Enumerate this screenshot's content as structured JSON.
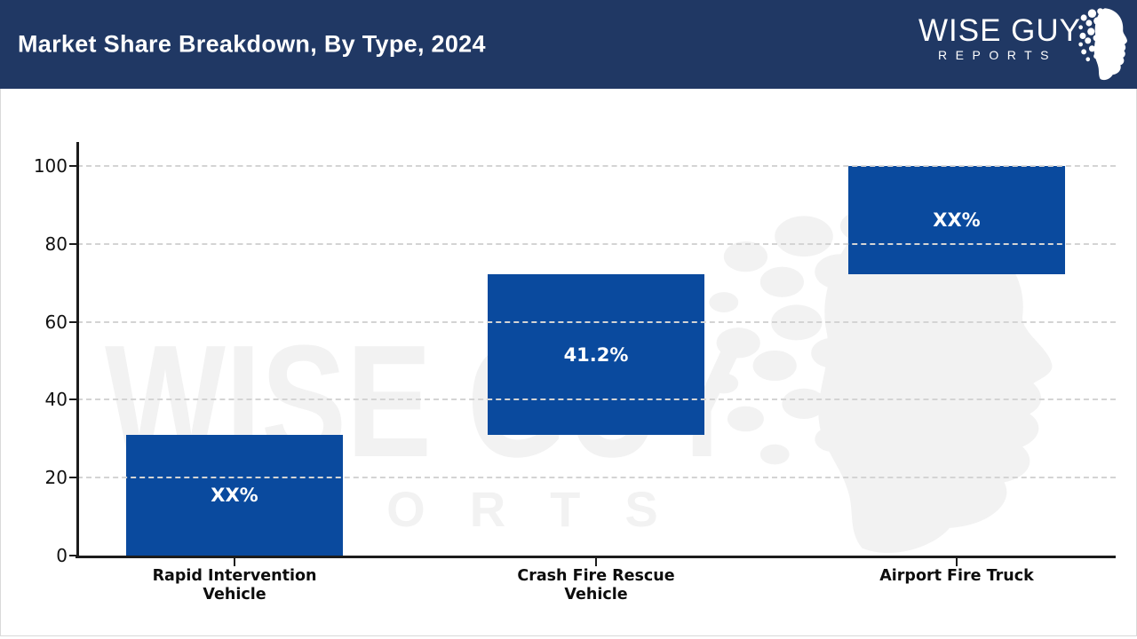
{
  "header": {
    "title": "Market Share Breakdown, By Type, 2024",
    "logo": {
      "line1": "WISE GUY",
      "line2": "REPORTS"
    }
  },
  "watermark": {
    "line1": "WISE GUY",
    "line2": "REPORTS"
  },
  "colors": {
    "header_bg": "#203864",
    "bar": "#0a4a9e",
    "bar_label": "#ffffff",
    "grid": "#d4d4d4",
    "axis": "#1c1c1c",
    "tick_text": "#111111",
    "watermark": "#f2f2f2"
  },
  "chart_data": {
    "type": "bar",
    "subtype": "floating-waterfall-segments",
    "title": "Market Share Breakdown, By Type, 2024",
    "categories": [
      "Rapid Intervention\nVehicle",
      "Crash Fire Rescue\nVehicle",
      "Airport Fire Truck"
    ],
    "segments": [
      {
        "category": "Rapid Intervention Vehicle",
        "start": 0,
        "end": 30.9,
        "label": "XX%"
      },
      {
        "category": "Crash Fire Rescue Vehicle",
        "start": 30.9,
        "end": 72.1,
        "label": "41.2%"
      },
      {
        "category": "Airport Fire Truck",
        "start": 72.1,
        "end": 100,
        "label": "XX%"
      }
    ],
    "ylim": [
      0,
      100
    ],
    "yticks": [
      0,
      20,
      40,
      60,
      80,
      100
    ],
    "xlabel": "",
    "ylabel": "",
    "grid": "horizontal-dashed",
    "legend": "none"
  }
}
